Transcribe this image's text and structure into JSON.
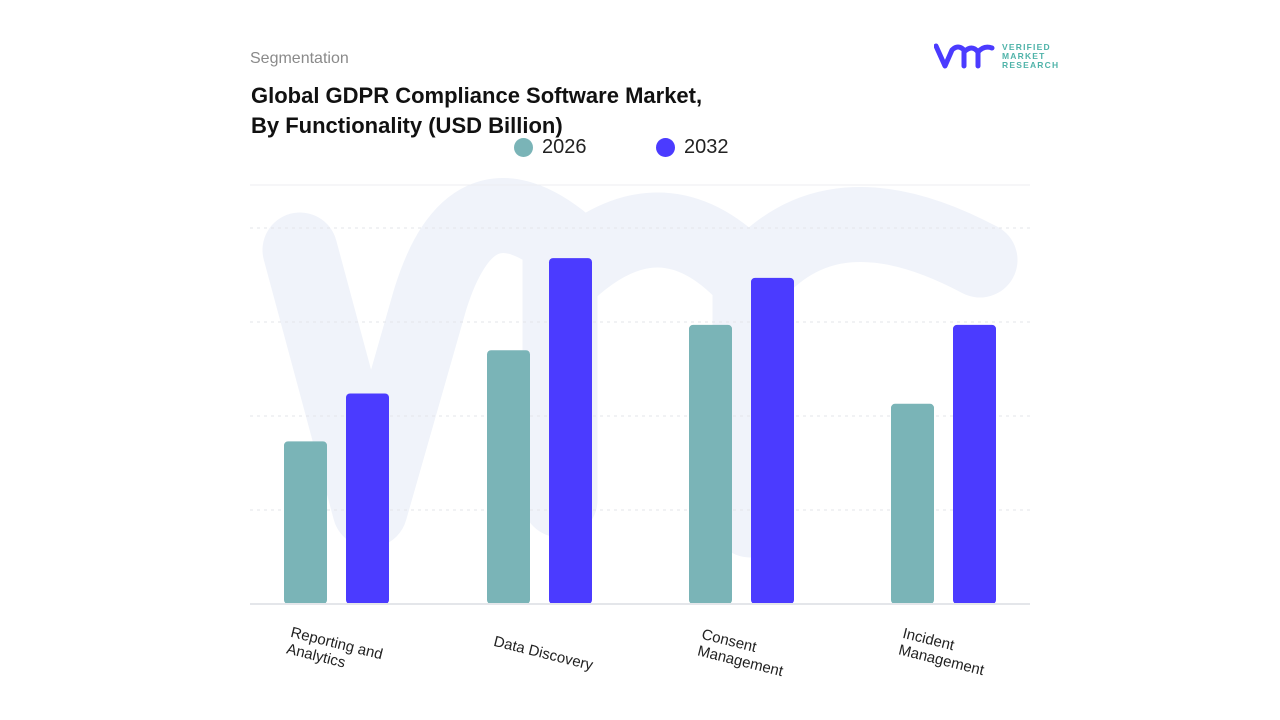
{
  "header": {
    "segment_label": "Segmentation",
    "title_line1": "Global GDPR Compliance Software Market,",
    "title_line2": "By Functionality (USD Billion)"
  },
  "logo": {
    "text": "VERIFIED MARKET RESEARCH",
    "line1": "VERIFIED",
    "line2": "MARKET",
    "line3": "RESEARCH"
  },
  "chart_data": {
    "type": "bar",
    "title": "Global GDPR Compliance Software Market, By Functionality (USD Billion)",
    "categories": [
      "Reporting and Analytics",
      "Data Discovery",
      "Consent Management",
      "Incident Management"
    ],
    "series": [
      {
        "name": "2026",
        "color": "#7ab4b7",
        "values": [
          1.73,
          2.7,
          2.97,
          2.13
        ]
      },
      {
        "name": "2032",
        "color": "#4b3bff",
        "values": [
          2.24,
          3.68,
          3.47,
          2.97
        ]
      }
    ],
    "xlabel": "",
    "ylabel": "",
    "ylim": [
      0,
      4.45
    ],
    "grid": true,
    "legend": "top-center",
    "y_tick_labels_shown": false
  }
}
